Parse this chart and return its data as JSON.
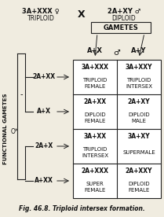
{
  "title": "Fig. 46.8. Triploid intersex formation.",
  "cross_left": "3A+XXX",
  "cross_left_label": "TRIPLOID",
  "cross_right": "2A+XY",
  "cross_right_label": "DIPLOID",
  "gametes_label": "GAMETES",
  "col_headers": [
    "A+X",
    "A+Y"
  ],
  "row_headers": [
    "2A+XX",
    "A+X",
    "2A+X",
    "A+XX"
  ],
  "side_label": "FUNCTIONAL GAMETES",
  "male_symbol": "♂",
  "female_symbol": "♀",
  "cells": [
    [
      "3A+XXX\nTRIPLOID\nFEMALE",
      "3A+XXY\nTRIPLOID\nINTERSEX"
    ],
    [
      "2A+XX\nDIPLOID\nFEMALE",
      "2A+XY\nDIPLOID\nMALE"
    ],
    [
      "3A+XX\nTRIPLOID\nINTERSEX",
      "3A+XY\nSUPERMALE"
    ],
    [
      "2A+XXX\nSUPER\nFEMALE",
      "2A+XXY\nDIPLOID\nFEMALE"
    ]
  ],
  "bg_color": "#f0ece0",
  "grid_color": "#222222",
  "text_color": "#111111",
  "figw": 2.09,
  "figh": 2.76,
  "dpi": 100
}
